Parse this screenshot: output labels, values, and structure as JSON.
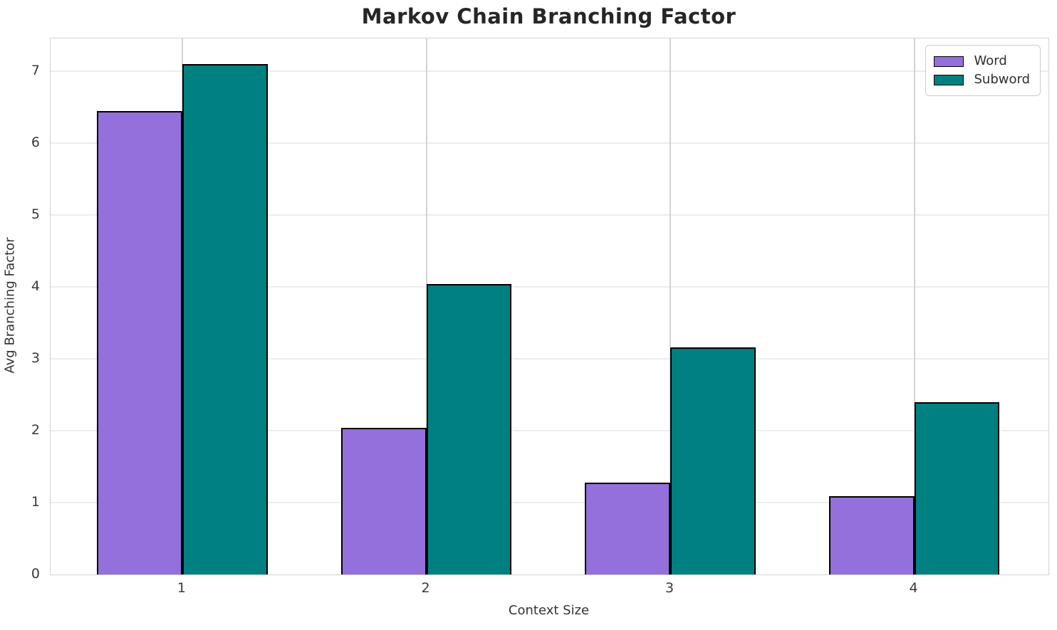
{
  "chart_data": {
    "type": "bar",
    "title": "Markov Chain Branching Factor",
    "xlabel": "Context Size",
    "ylabel": "Avg Branching Factor",
    "categories": [
      1,
      2,
      3,
      4
    ],
    "series": [
      {
        "name": "Word",
        "color": "#9370db",
        "values": [
          6.45,
          2.04,
          1.28,
          1.09
        ]
      },
      {
        "name": "Subword",
        "color": "#008080",
        "values": [
          7.1,
          4.04,
          3.16,
          2.4
        ]
      }
    ],
    "yticks": [
      0,
      1,
      2,
      3,
      4,
      5,
      6,
      7
    ],
    "ylim": [
      0,
      7.46
    ],
    "xlim": [
      0.46,
      4.55
    ],
    "bar_width": 0.35,
    "bar_edge_color": "#000000",
    "grid": true,
    "gridline_h_color": "#ededed",
    "gridline_v_color": "#d4d4d4",
    "legend_position": "upper right"
  }
}
